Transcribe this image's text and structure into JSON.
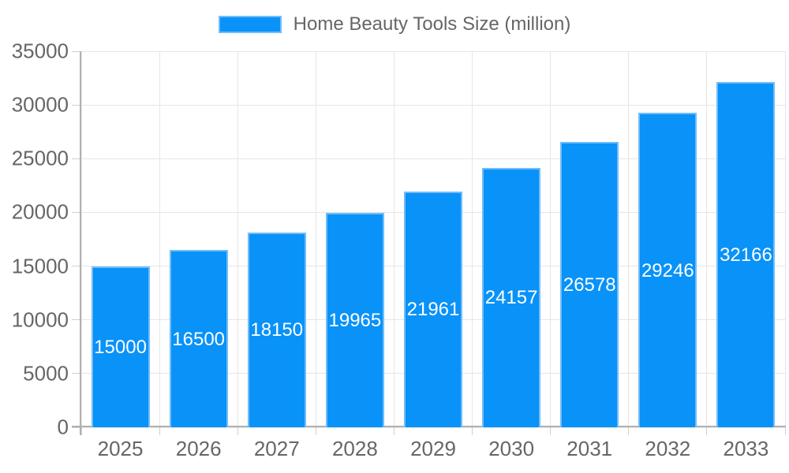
{
  "chart": {
    "legend": {
      "label": "Home Beauty Tools Size (million)"
    }
  },
  "chart_data": {
    "type": "bar",
    "title": "Home Beauty Tools Size (million)",
    "series_name": "Home Beauty Tools Size (million)",
    "categories": [
      "2025",
      "2026",
      "2027",
      "2028",
      "2029",
      "2030",
      "2031",
      "2032",
      "2033"
    ],
    "values": [
      15000,
      16500,
      18150,
      19965,
      21961,
      24157,
      26578,
      29246,
      32166
    ],
    "bar_value_labels": [
      "15000",
      "16500",
      "18150",
      "19965",
      "21961",
      "24157",
      "26578",
      "29246",
      "32166"
    ],
    "xlabel": "",
    "ylabel": "",
    "ylim": [
      0,
      35000
    ],
    "yticks": [
      0,
      5000,
      10000,
      15000,
      20000,
      25000,
      30000,
      35000
    ],
    "grid": "on",
    "legend_position": "top",
    "value_label_position": "center-of-bar",
    "colors": {
      "bar_fill": "#0992f8",
      "bar_border": "#70bdfa",
      "grid_line": "#e6e6e6",
      "tick_mark": "#cfcfcf",
      "axis_line": "#b0b0b0",
      "tick_text": "#666666",
      "legend_text": "#666666",
      "value_label_text": "#ffffff",
      "background": "#ffffff"
    }
  }
}
